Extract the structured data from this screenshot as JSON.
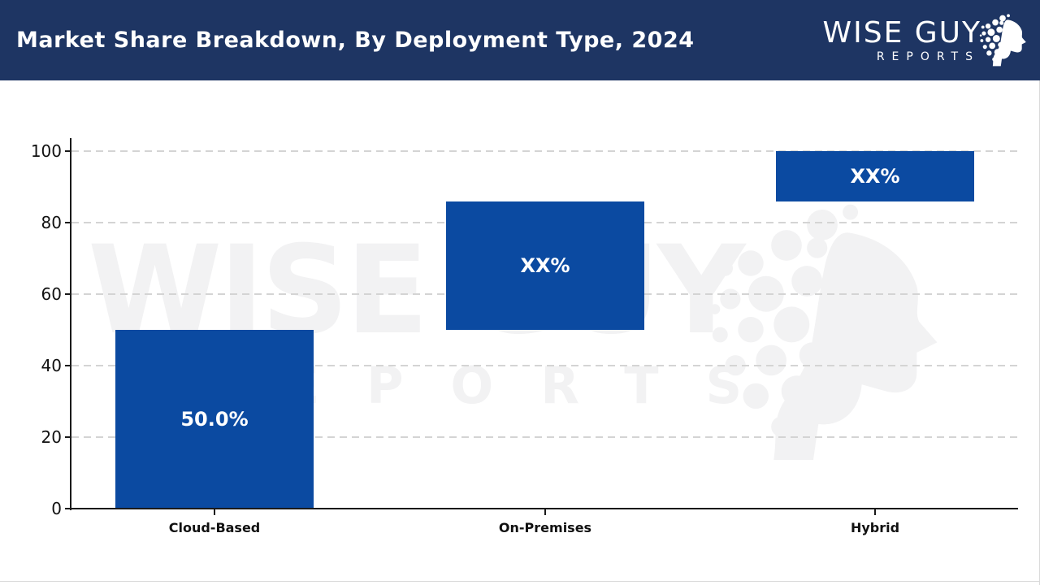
{
  "header": {
    "title": "Market Share Breakdown, By Deployment Type, 2024",
    "bg_color": "#1e3563",
    "logo": {
      "line1": "WISE GUY",
      "line2": "REPORTS"
    }
  },
  "watermark": {
    "line1": "WISE GUY",
    "line2": "REPORTS",
    "color": "#f2f2f3"
  },
  "chart_data": {
    "type": "bar",
    "subtype": "waterfall-range-bars",
    "title": "Market Share Breakdown, By Deployment Type, 2024",
    "categories": [
      "Cloud-Based",
      "On-Premises",
      "Hybrid"
    ],
    "bars": [
      {
        "category": "Cloud-Based",
        "start": 0,
        "end": 50,
        "label": "50.0%"
      },
      {
        "category": "On-Premises",
        "start": 50,
        "end": 86,
        "label": "XX%"
      },
      {
        "category": "Hybrid",
        "start": 86,
        "end": 100,
        "label": "XX%"
      }
    ],
    "ylim": [
      0,
      100
    ],
    "yticks": [
      0,
      20,
      40,
      60,
      80,
      100
    ],
    "grid": "dashed-horizontal",
    "bar_color": "#0b4aa1",
    "label_color": "#ffffff",
    "axis_color": "#1a1a1a",
    "grid_color": "#d4d4d4"
  }
}
